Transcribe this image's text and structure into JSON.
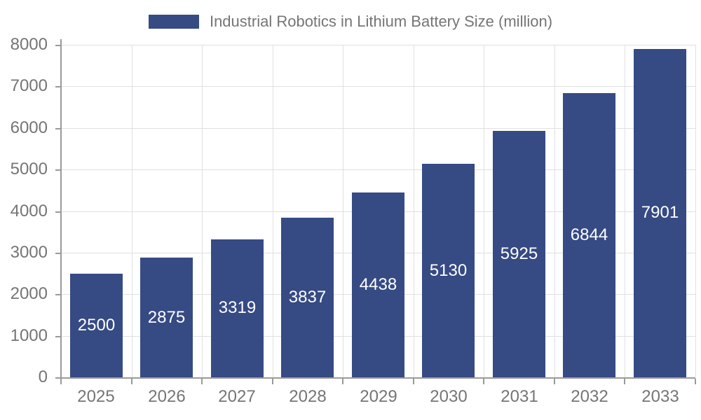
{
  "legend": {
    "label": "Industrial Robotics in Lithium Battery Size (million)"
  },
  "chart_data": {
    "type": "bar",
    "title": "Industrial Robotics in Lithium Battery Size (million)",
    "series_name": "Industrial Robotics in Lithium Battery Size (million)",
    "categories": [
      "2025",
      "2026",
      "2027",
      "2028",
      "2029",
      "2030",
      "2031",
      "2032",
      "2033"
    ],
    "values": [
      2500,
      2875,
      3319,
      3837,
      4438,
      5130,
      5925,
      6844,
      7901
    ],
    "xlabel": "",
    "ylabel": "",
    "ylim": [
      0,
      8000
    ],
    "yticks": [
      0,
      1000,
      2000,
      3000,
      4000,
      5000,
      6000,
      7000,
      8000
    ],
    "grid": true,
    "legend_position": "top-center",
    "bar_labels_visible": true,
    "colors": {
      "bar": "#364A84",
      "bar_value_text": "#ffffff",
      "axis_text": "#757575",
      "grid_line": "#e0e0e0",
      "axis_line": "#9a9a9a",
      "background": "#ffffff"
    }
  }
}
